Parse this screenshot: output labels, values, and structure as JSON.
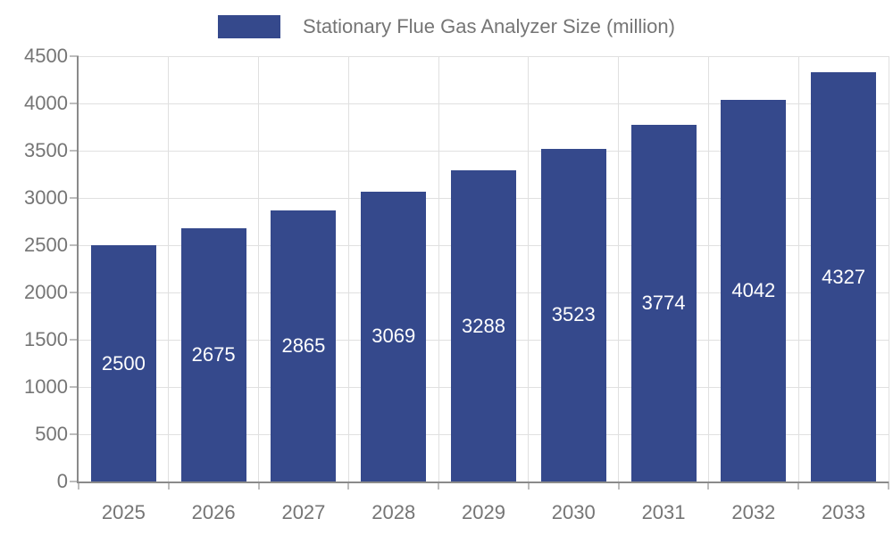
{
  "chart_data": {
    "type": "bar",
    "title": "",
    "legend_label": "Stationary Flue Gas Analyzer Size (million)",
    "legend_position": "top-center",
    "categories": [
      "2025",
      "2026",
      "2027",
      "2028",
      "2029",
      "2030",
      "2031",
      "2032",
      "2033"
    ],
    "values": [
      2500,
      2675,
      2865,
      3069,
      3288,
      3523,
      3774,
      4042,
      4327
    ],
    "xlabel": "",
    "ylabel": "",
    "ylim": [
      0,
      4500
    ],
    "ytick_step": 500,
    "yticks": [
      0,
      500,
      1000,
      1500,
      2000,
      2500,
      3000,
      3500,
      4000,
      4500
    ],
    "grid": true,
    "bar_labels_inside": true,
    "colors": {
      "bar": "#35498C",
      "bar_label_text": "#ffffff",
      "axis_text": "#757575",
      "grid_line": "#e0e0e0",
      "axis_line": "#8a8a8a",
      "tick": "#bdbdbd",
      "background": "#ffffff"
    }
  }
}
